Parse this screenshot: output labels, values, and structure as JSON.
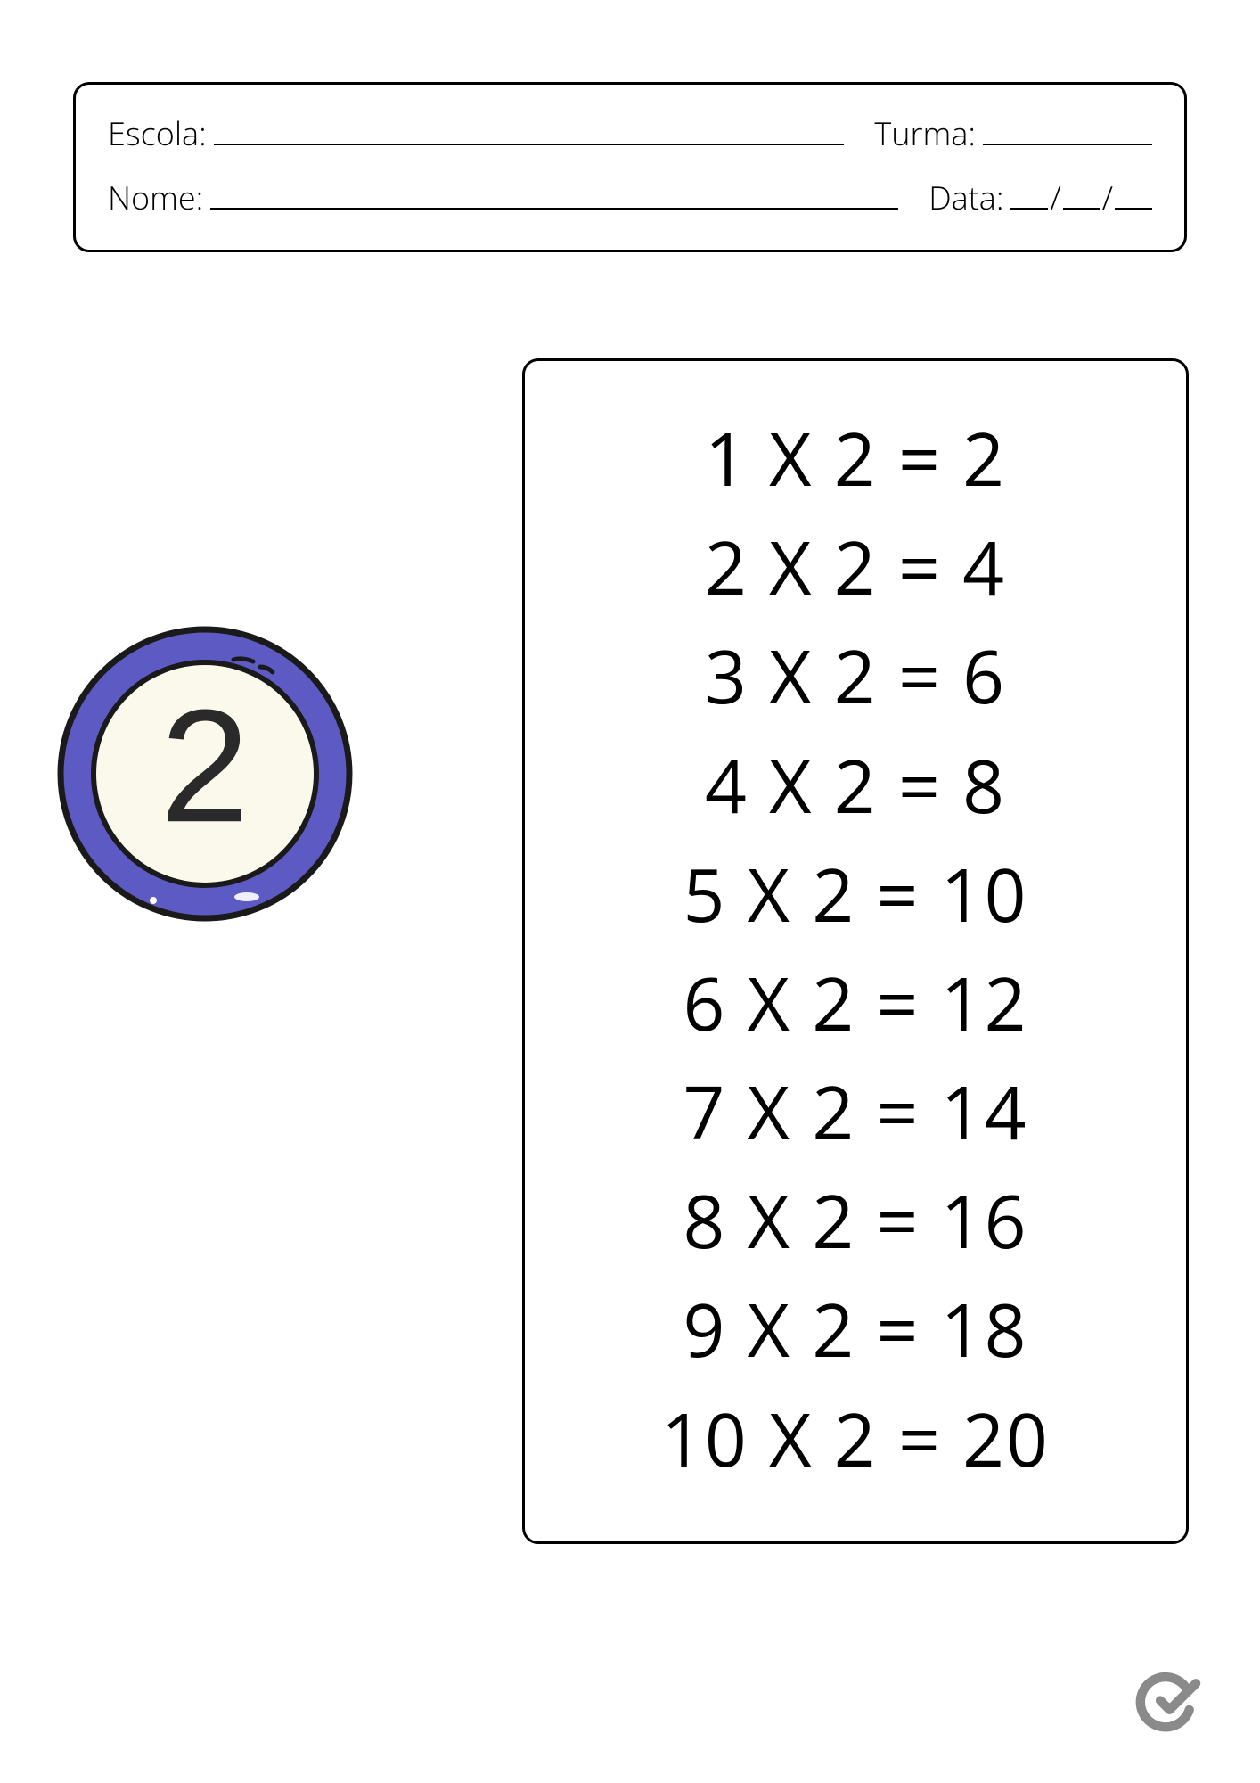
{
  "header": {
    "school_label": "Escola:",
    "class_label": "Turma:",
    "name_label": "Nome:",
    "date_label": "Data:",
    "date_sep": "/"
  },
  "badge": {
    "number": "2",
    "ring_color": "#5d5ac4",
    "outline_color": "#1a1a1a",
    "inner_fill": "#fbf9ec"
  },
  "table": {
    "multiplier": 2,
    "rows": [
      {
        "a": 1,
        "b": 2,
        "r": 2
      },
      {
        "a": 2,
        "b": 2,
        "r": 4
      },
      {
        "a": 3,
        "b": 2,
        "r": 6
      },
      {
        "a": 4,
        "b": 2,
        "r": 8
      },
      {
        "a": 5,
        "b": 2,
        "r": 10
      },
      {
        "a": 6,
        "b": 2,
        "r": 12
      },
      {
        "a": 7,
        "b": 2,
        "r": 14
      },
      {
        "a": 8,
        "b": 2,
        "r": 16
      },
      {
        "a": 9,
        "b": 2,
        "r": 18
      },
      {
        "a": 10,
        "b": 2,
        "r": 20
      }
    ],
    "op_symbol": "X",
    "eq_symbol": "="
  },
  "colors": {
    "page_bg": "#ffffff",
    "border": "#000000",
    "text": "#000000",
    "logo": "#8a8a8a"
  }
}
